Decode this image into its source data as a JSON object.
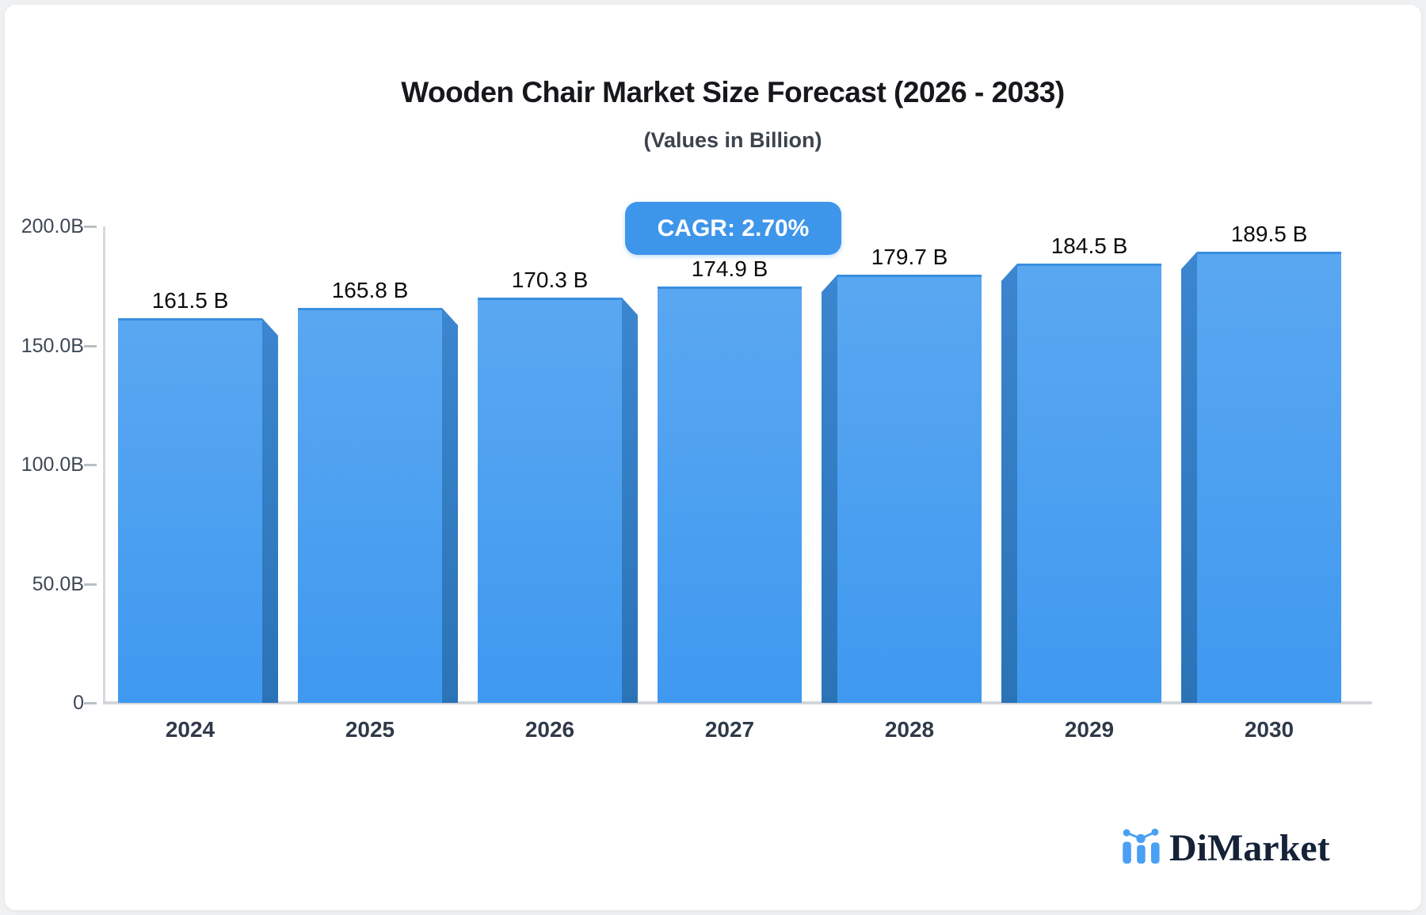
{
  "chart_data": {
    "type": "bar",
    "title": "Wooden Chair Market Size Forecast (2026 - 2033)",
    "subtitle": "(Values in Billion)",
    "categories": [
      "2024",
      "2025",
      "2026",
      "2027",
      "2028",
      "2029",
      "2030"
    ],
    "values": [
      161.5,
      165.8,
      170.3,
      174.9,
      179.7,
      184.5,
      189.5
    ],
    "value_labels": [
      "161.5 B",
      "165.8 B",
      "170.3 B",
      "174.9 B",
      "179.7 B",
      "184.5 B",
      "189.5 B"
    ],
    "y_ticks": [
      {
        "label": "200.0B",
        "value": 200
      },
      {
        "label": "150.0B",
        "value": 150
      },
      {
        "label": "100.0B",
        "value": 100
      },
      {
        "label": "50.0B",
        "value": 50
      },
      {
        "label": "0",
        "value": 0
      }
    ],
    "ylim": [
      0,
      200
    ],
    "xlabel": "",
    "ylabel": "",
    "grid": false,
    "legend": false,
    "annotation": {
      "cagr_label": "CAGR: 2.70%"
    },
    "colors": {
      "bar_face_top": "#5aa7f1",
      "bar_face_bottom": "#3f99f0",
      "bar_top_edge": "#3a8ede",
      "bar_side": "#2e79c0",
      "badge_background": "#3e96ea",
      "badge_text": "#ffffff",
      "axis_line": "#d6d9dd",
      "logo_blue": "#4aa0f4",
      "logo_navy": "#152238"
    }
  },
  "branding": {
    "logo_text": "DiMarket",
    "logo_icon": "bar-chart-with-trend-dots-icon"
  }
}
